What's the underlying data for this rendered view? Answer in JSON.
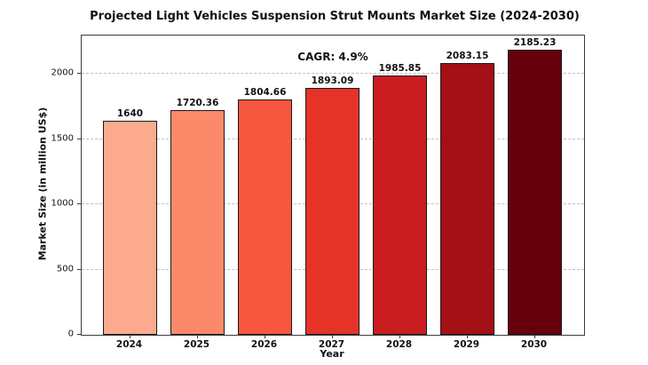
{
  "chart_data": {
    "type": "bar",
    "title": "Projected Light Vehicles Suspension Strut Mounts Market Size (2024-2030)",
    "xlabel": "Year",
    "ylabel": "Market Size (in million US$)",
    "annotation": "CAGR: 4.9%",
    "categories": [
      "2024",
      "2025",
      "2026",
      "2027",
      "2028",
      "2029",
      "2030"
    ],
    "values": [
      1640,
      1720.36,
      1804.66,
      1893.09,
      1985.85,
      2083.15,
      2185.23
    ],
    "value_labels": [
      "1640",
      "1720.36",
      "1804.66",
      "1893.09",
      "1985.85",
      "2083.15",
      "2185.23"
    ],
    "bar_colors": [
      "#fcab8e",
      "#fc8a6a",
      "#f6573e",
      "#e63328",
      "#c91d21",
      "#a31015",
      "#67000d"
    ],
    "bar_edge_color": "#1a1a1a",
    "yticks": [
      0,
      500,
      1000,
      1500,
      2000
    ],
    "ylim": [
      0,
      2294.5
    ],
    "grid": "horizontal-dashed",
    "legend": "none"
  }
}
